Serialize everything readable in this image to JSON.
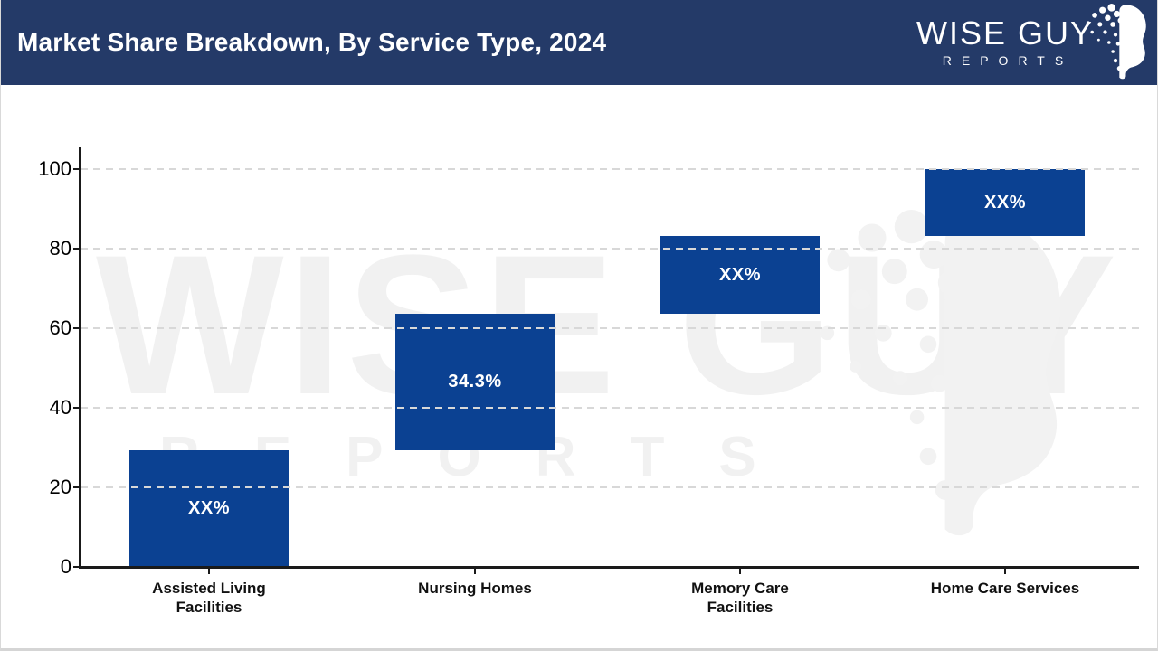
{
  "header": {
    "title": "Market Share Breakdown, By Service Type, 2024",
    "logo": {
      "primary": "WISE GUY",
      "secondary": "REPORTS"
    }
  },
  "watermark": {
    "primary": "WISE GUY",
    "secondary": "REPORTS"
  },
  "icons": {
    "logo_face": "wise-guy-dotted-head-profile",
    "watermark_face": "wise-guy-dotted-head-profile"
  },
  "chart_data": {
    "type": "bar",
    "variant": "floating-segment-waterfall",
    "title": "Market Share Breakdown, By Service Type, 2024",
    "unit": "%",
    "categories": [
      {
        "label_lines": [
          "Assisted Living",
          "Facilities"
        ],
        "base": 0,
        "top": 29.3,
        "value": 29.3,
        "label": "XX%"
      },
      {
        "label_lines": [
          "Nursing Homes"
        ],
        "base": 29.3,
        "top": 63.6,
        "value": 34.3,
        "label": "34.3%"
      },
      {
        "label_lines": [
          "Memory Care",
          "Facilities"
        ],
        "base": 63.6,
        "top": 83.1,
        "value": 19.5,
        "label": "XX%"
      },
      {
        "label_lines": [
          "Home Care Services"
        ],
        "base": 83.1,
        "top": 100,
        "value": 16.9,
        "label": "XX%"
      }
    ],
    "ylim": [
      0,
      100
    ],
    "yticks": [
      0,
      20,
      40,
      60,
      80,
      100
    ],
    "grid": "horizontal-dashed",
    "legend": "none",
    "bar_color": "#0b4192"
  },
  "colors": {
    "header_bg": "#243a68",
    "bar": "#0b4192",
    "gridline": "#d8d8d8",
    "axis": "#1a1a1a",
    "watermark": "#f1f1f1",
    "title_text": "#ffffff",
    "label_text": "#111111"
  }
}
